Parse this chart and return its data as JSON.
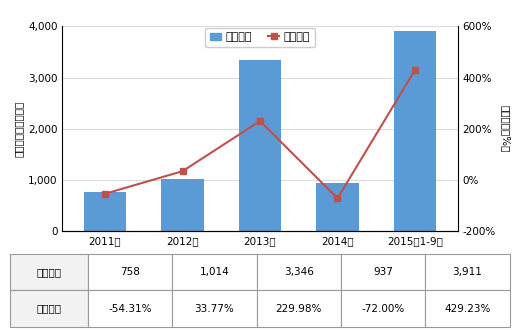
{
  "categories": [
    "2011年",
    "2012年",
    "2013年",
    "2014年",
    "2015年1-9月"
  ],
  "bar_values": [
    758,
    1014,
    3346,
    937,
    3911
  ],
  "growth_values": [
    -54.31,
    33.77,
    229.98,
    -72.0,
    429.23
  ],
  "bar_color": "#5B9BD5",
  "line_color": "#C0504D",
  "left_ylabel": "进口数量（平方米）",
  "right_ylabel": "同比增速（%）",
  "left_ylim": [
    0,
    4000
  ],
  "left_yticks": [
    0,
    1000,
    2000,
    3000,
    4000
  ],
  "left_yticklabels": [
    "0",
    "1,000",
    "2,000",
    "3,000",
    "4,000"
  ],
  "right_ylim": [
    -200,
    600
  ],
  "right_yticks": [
    -200,
    0,
    200,
    400,
    600
  ],
  "right_yticklabels": [
    "-200%",
    "0%",
    "200%",
    "400%",
    "600%"
  ],
  "legend_bar": "进口数量",
  "legend_line": "同比增长",
  "table_row1_label": "进口数量",
  "table_row2_label": "同比增长",
  "table_row1_values": [
    "758",
    "1,014",
    "3,346",
    "937",
    "3,911"
  ],
  "table_row2_values": [
    "-54.31%",
    "33.77%",
    "229.98%",
    "-72.00%",
    "429.23%"
  ],
  "bg_color": "#FFFFFF",
  "grid_color": "#D9D9D9",
  "table_border_color": "#999999",
  "table_header_bg": "#F2F2F2"
}
